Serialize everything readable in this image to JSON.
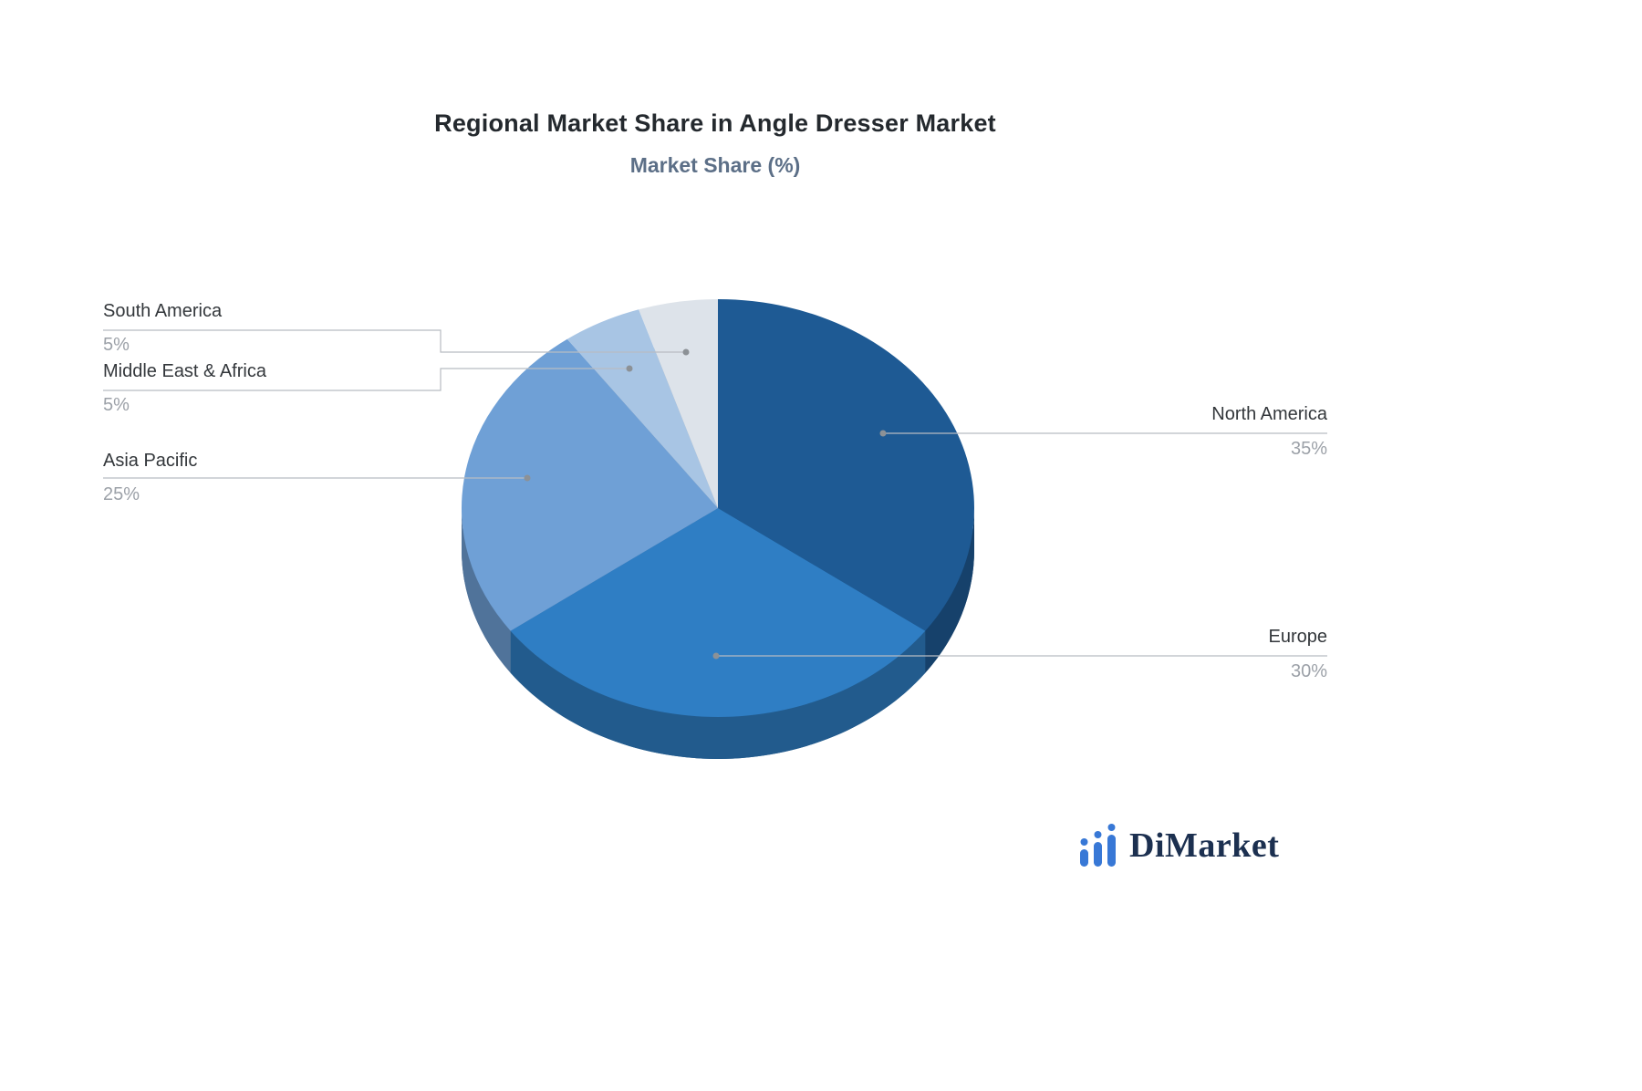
{
  "header": {
    "title": "Regional Market Share in Angle Dresser Market",
    "subtitle": "Market Share (%)"
  },
  "chart_data": {
    "type": "pie",
    "title": "Regional Market Share in Angle Dresser Market",
    "subtitle": "Market Share (%)",
    "unit": "%",
    "style": "3d",
    "start_angle_deg": 0,
    "direction": "clockwise",
    "legend_position": "callout-labels",
    "slices": [
      {
        "label": "North America",
        "value": 35,
        "display": "35%",
        "color": "#1e5a94"
      },
      {
        "label": "Europe",
        "value": 30,
        "display": "30%",
        "color": "#2f7ec4"
      },
      {
        "label": "Asia Pacific",
        "value": 25,
        "display": "25%",
        "color": "#6fa0d6"
      },
      {
        "label": "Middle East & Africa",
        "value": 5,
        "display": "5%",
        "color": "#a8c5e4"
      },
      {
        "label": "South America",
        "value": 5,
        "display": "5%",
        "color": "#dde3ea"
      }
    ]
  },
  "branding": {
    "logo_text": "DiMarket"
  }
}
